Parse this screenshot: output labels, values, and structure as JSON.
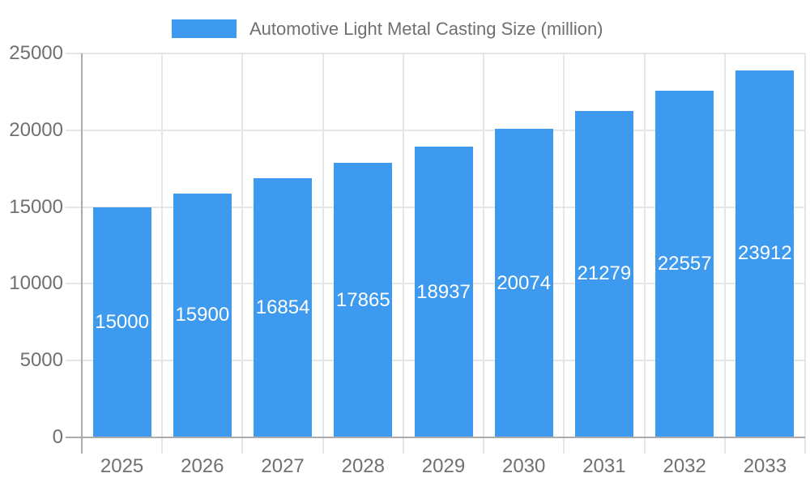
{
  "chart_data": {
    "type": "bar",
    "title": "",
    "legend": {
      "label": "Automotive Light Metal Casting Size (million)",
      "position": "top"
    },
    "categories": [
      "2025",
      "2026",
      "2027",
      "2028",
      "2029",
      "2030",
      "2031",
      "2032",
      "2033"
    ],
    "series": [
      {
        "name": "Automotive Light Metal Casting Size (million)",
        "values": [
          15000,
          15900,
          16854,
          17865,
          18937,
          20074,
          21279,
          22557,
          23912
        ]
      }
    ],
    "value_labels": [
      "15000",
      "15900",
      "16854",
      "17865",
      "18937",
      "20074",
      "21279",
      "22557",
      "23912"
    ],
    "xlabel": "",
    "ylabel": "",
    "ylim": [
      0,
      25000
    ],
    "yticks": [
      0,
      5000,
      10000,
      15000,
      20000,
      25000
    ],
    "ytick_labels": [
      "0",
      "5000",
      "10000",
      "15000",
      "20000",
      "25000"
    ],
    "grid": true,
    "legend_position": "top",
    "colors": {
      "bar": "#3E9AEE",
      "grid_line": "#E6E6E6",
      "axis_line": "#ABABAB",
      "tick_text": "#707070",
      "legend_text": "#707070",
      "value_label_text": "#FFFFFF",
      "background": "#FFFFFF"
    }
  }
}
